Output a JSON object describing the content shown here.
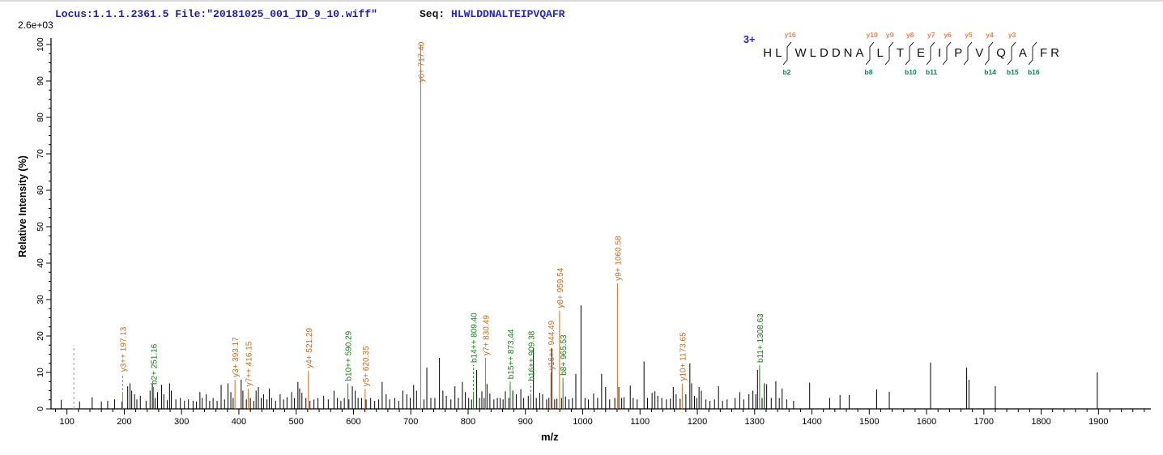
{
  "header": {
    "locus_file": "Locus:1.1.1.2361.5 File:\"20181025_001_ID_9_10.wiff\"",
    "seq_label": "Seq: ",
    "seq_value": "HLWLDDNALTEIPVQAFR"
  },
  "axes": {
    "y_top_label": "2.6e+03",
    "y_axis_title": "Relative  Intensity (%)",
    "x_axis_title": "m/z",
    "x_range": [
      75,
      1990
    ],
    "y_range": [
      0,
      100
    ],
    "x_major_tick_step": 100,
    "x_minor_tick_step": 20,
    "y_major_tick_step": 10,
    "y_minor_tick_step": 2.5,
    "x_tick_labels": [
      100,
      200,
      300,
      400,
      500,
      600,
      700,
      800,
      900,
      1000,
      1100,
      1200,
      1300,
      1400,
      1500,
      1600,
      1700,
      1800,
      1900
    ],
    "y_tick_labels": [
      0,
      10,
      20,
      30,
      40,
      50,
      60,
      70,
      80,
      90,
      100
    ]
  },
  "fragment_map": {
    "charge": "3+",
    "residues": [
      "H",
      "L",
      "W",
      "L",
      "D",
      "D",
      "N",
      "A",
      "L",
      "T",
      "E",
      "I",
      "P",
      "V",
      "Q",
      "A",
      "F",
      "R"
    ],
    "cleavages": [
      {
        "after": 2,
        "y": "y16",
        "b": "b2"
      },
      {
        "after": 8,
        "y": "y10",
        "b": "b8"
      },
      {
        "after": 9,
        "y": "y9",
        "b": null
      },
      {
        "after": 10,
        "y": "y8",
        "b": "b10"
      },
      {
        "after": 11,
        "y": "y7",
        "b": "b11"
      },
      {
        "after": 12,
        "y": "y6",
        "b": null
      },
      {
        "after": 13,
        "y": "y5",
        "b": null
      },
      {
        "after": 14,
        "y": "y4",
        "b": "b14"
      },
      {
        "after": 15,
        "y": "y3",
        "b": "b15"
      },
      {
        "after": 16,
        "y": null,
        "b": "b16"
      }
    ]
  },
  "colors": {
    "y_ion": "#d2691e",
    "b_ion": "#128412",
    "frag_y": "#f08254",
    "frag_b": "#0b8457",
    "peak": "#000000",
    "precursor": "#9a9a9a",
    "charge_blue": "#2424c8",
    "header_blue": "#1c1cb0",
    "seq_blue": "#2424d0"
  },
  "chart_data": {
    "type": "bar",
    "subtype": "ms2-centroid-stick-spectrum",
    "title": "",
    "xlabel": "m/z",
    "ylabel": "Relative  Intensity (%)",
    "xlim": [
      75,
      1990
    ],
    "ylim": [
      0,
      100
    ],
    "base_peak_intensity": "2.6e+03",
    "precursor_marker": {
      "mz": 112,
      "intensity": 17.5,
      "style": "dashed-gray"
    },
    "labeled_peaks": [
      {
        "ion": "y3++",
        "ion_type": "y",
        "label": "y3++ 197.13",
        "mz": 197.13,
        "intensity": 4,
        "label_start": 9.5,
        "leader": "dashed"
      },
      {
        "ion": "b2+",
        "ion_type": "b",
        "label": "b2+ 251.16",
        "mz": 251.16,
        "intensity": 5,
        "label_start": 6,
        "leader": "solid"
      },
      {
        "ion": "y3+",
        "ion_type": "y",
        "label": "y3+ 393.17",
        "mz": 393.17,
        "intensity": 7,
        "label_start": 8,
        "leader": "solid"
      },
      {
        "ion": "y7++",
        "ion_type": "y",
        "label": "y7++ 416.15",
        "mz": 416.15,
        "intensity": 4.5,
        "label_start": 5.5,
        "leader": "solid"
      },
      {
        "ion": "y4+",
        "ion_type": "y",
        "label": "y4+ 521.29",
        "mz": 521.29,
        "intensity": 9.5,
        "label_start": 10.5,
        "leader": "solid"
      },
      {
        "ion": "b10++",
        "ion_type": "b",
        "label": "b10++ 590.29",
        "mz": 590.29,
        "intensity": 6,
        "label_start": 7,
        "leader": "solid"
      },
      {
        "ion": "y5+",
        "ion_type": "y",
        "label": "y5+ 620.35",
        "mz": 620.35,
        "intensity": 4.5,
        "label_start": 5.5,
        "leader": "solid"
      },
      {
        "ion": "y6+",
        "ion_type": "y",
        "label": "y6+ 717.40",
        "mz": 717.4,
        "intensity": 100,
        "label_start": 89,
        "leader": "solid"
      },
      {
        "ion": "b14++",
        "ion_type": "b",
        "label": "b14++ 809.40",
        "mz": 809.4,
        "intensity": 4,
        "label_start": 12,
        "leader": "dashed"
      },
      {
        "ion": "y7+",
        "ion_type": "y",
        "label": "y7+ 830.49",
        "mz": 830.49,
        "intensity": 13,
        "label_start": 14,
        "leader": "solid"
      },
      {
        "ion": "b15++",
        "ion_type": "b",
        "label": "b15++ 873.44",
        "mz": 873.44,
        "intensity": 6.5,
        "label_start": 7.5,
        "leader": "solid"
      },
      {
        "ion": "b16++",
        "ion_type": "b",
        "label": "b16++ 909.38",
        "mz": 909.38,
        "intensity": 3.5,
        "label_start": 7,
        "leader": "dashed"
      },
      {
        "ion": "y16++",
        "ion_type": "y",
        "label": "y16++ 944.49",
        "mz": 944.49,
        "intensity": 9,
        "label_start": 10,
        "leader": "solid"
      },
      {
        "ion": "y8+",
        "ion_type": "y",
        "label": "y8+ 959.54",
        "mz": 959.54,
        "intensity": 26,
        "label_start": 27,
        "leader": "solid"
      },
      {
        "ion": "b8+",
        "ion_type": "b",
        "label": "b8+ 965.53",
        "mz": 965.53,
        "intensity": 7.5,
        "label_start": 8.5,
        "leader": "solid"
      },
      {
        "ion": "y9+",
        "ion_type": "y",
        "label": "y9+ 1060.58",
        "mz": 1060.58,
        "intensity": 33.5,
        "label_start": 34.5,
        "leader": "solid"
      },
      {
        "ion": "y10+",
        "ion_type": "y",
        "label": "y10+ 1173.65",
        "mz": 1173.65,
        "intensity": 6,
        "label_start": 7,
        "leader": "solid"
      },
      {
        "ion": "b11+",
        "ion_type": "b",
        "label": "b11+ 1308.63",
        "mz": 1308.63,
        "intensity": 11,
        "label_start": 12,
        "leader": "solid"
      }
    ],
    "background_peaks": [
      [
        90,
        2.5
      ],
      [
        122,
        2
      ],
      [
        144,
        3.2
      ],
      [
        160,
        2
      ],
      [
        171,
        2.2
      ],
      [
        183,
        2.6
      ],
      [
        196,
        2
      ],
      [
        206,
        6.2
      ],
      [
        210,
        7
      ],
      [
        213,
        5
      ],
      [
        218,
        4
      ],
      [
        222,
        2.6
      ],
      [
        228,
        3.6
      ],
      [
        238,
        2.2
      ],
      [
        245,
        5
      ],
      [
        249,
        7
      ],
      [
        254,
        3
      ],
      [
        258,
        4.6
      ],
      [
        265,
        6.6
      ],
      [
        269,
        4
      ],
      [
        275,
        2.4
      ],
      [
        279,
        7
      ],
      [
        282,
        5
      ],
      [
        290,
        2.6
      ],
      [
        298,
        3
      ],
      [
        305,
        2.2
      ],
      [
        312,
        2.6
      ],
      [
        320,
        2.2
      ],
      [
        326,
        2
      ],
      [
        332,
        4.6
      ],
      [
        336,
        3
      ],
      [
        343,
        4
      ],
      [
        349,
        2.2
      ],
      [
        355,
        3
      ],
      [
        362,
        2.2
      ],
      [
        369,
        6.6
      ],
      [
        375,
        2.6
      ],
      [
        381,
        7
      ],
      [
        386,
        4.6
      ],
      [
        390,
        3
      ],
      [
        404,
        8
      ],
      [
        407,
        5
      ],
      [
        413,
        2.6
      ],
      [
        420,
        3
      ],
      [
        426,
        2.2
      ],
      [
        430,
        5
      ],
      [
        434,
        6
      ],
      [
        439,
        3
      ],
      [
        443,
        4
      ],
      [
        449,
        2.6
      ],
      [
        453,
        5.6
      ],
      [
        457,
        3
      ],
      [
        464,
        2.2
      ],
      [
        472,
        4
      ],
      [
        478,
        2.6
      ],
      [
        484,
        3.2
      ],
      [
        492,
        4.6
      ],
      [
        497,
        3
      ],
      [
        503,
        7.4
      ],
      [
        506,
        5.6
      ],
      [
        510,
        4.4
      ],
      [
        517,
        3
      ],
      [
        524,
        2.2
      ],
      [
        531,
        2.6
      ],
      [
        538,
        3
      ],
      [
        548,
        3.6
      ],
      [
        556,
        2.6
      ],
      [
        566,
        5
      ],
      [
        572,
        3
      ],
      [
        578,
        2.2
      ],
      [
        584,
        3
      ],
      [
        592,
        2.6
      ],
      [
        598,
        6.2
      ],
      [
        603,
        5
      ],
      [
        608,
        3
      ],
      [
        614,
        3
      ],
      [
        622,
        2.6
      ],
      [
        630,
        3
      ],
      [
        637,
        2.2
      ],
      [
        644,
        2.6
      ],
      [
        650,
        7.4
      ],
      [
        657,
        4
      ],
      [
        663,
        2.6
      ],
      [
        672,
        3
      ],
      [
        679,
        2.2
      ],
      [
        686,
        5
      ],
      [
        693,
        4
      ],
      [
        699,
        3
      ],
      [
        705,
        6.6
      ],
      [
        710,
        5
      ],
      [
        723,
        2.6
      ],
      [
        728,
        11.3
      ],
      [
        735,
        3
      ],
      [
        742,
        3
      ],
      [
        750,
        14
      ],
      [
        756,
        5
      ],
      [
        762,
        3.6
      ],
      [
        770,
        2.6
      ],
      [
        777,
        6.2
      ],
      [
        783,
        3
      ],
      [
        790,
        7.4
      ],
      [
        795,
        4.6
      ],
      [
        801,
        3
      ],
      [
        806,
        2.6
      ],
      [
        815,
        10.7
      ],
      [
        820,
        3
      ],
      [
        824,
        4.8
      ],
      [
        828,
        3
      ],
      [
        833,
        6.8
      ],
      [
        838,
        4.2
      ],
      [
        845,
        2.6
      ],
      [
        851,
        3
      ],
      [
        856,
        3
      ],
      [
        861,
        2.6
      ],
      [
        865,
        4.8
      ],
      [
        871,
        3
      ],
      [
        878,
        5
      ],
      [
        884,
        4
      ],
      [
        892,
        5.4
      ],
      [
        897,
        3
      ],
      [
        905,
        3.6
      ],
      [
        914,
        16.6
      ],
      [
        919,
        3
      ],
      [
        925,
        4.4
      ],
      [
        930,
        4
      ],
      [
        937,
        2.6
      ],
      [
        941,
        3
      ],
      [
        946,
        16.6
      ],
      [
        951,
        2.6
      ],
      [
        955,
        2.8
      ],
      [
        963,
        3
      ],
      [
        970,
        3.4
      ],
      [
        976,
        2.6
      ],
      [
        982,
        3
      ],
      [
        988,
        9.6
      ],
      [
        997,
        28.4
      ],
      [
        1004,
        3
      ],
      [
        1010,
        2.6
      ],
      [
        1019,
        4.2
      ],
      [
        1026,
        3
      ],
      [
        1033,
        9.6
      ],
      [
        1040,
        6
      ],
      [
        1047,
        2.6
      ],
      [
        1056,
        3
      ],
      [
        1063,
        6
      ],
      [
        1068,
        3
      ],
      [
        1072,
        3.2
      ],
      [
        1083,
        6.4
      ],
      [
        1088,
        3
      ],
      [
        1095,
        2.6
      ],
      [
        1107,
        13
      ],
      [
        1113,
        3
      ],
      [
        1121,
        4.4
      ],
      [
        1126,
        4.8
      ],
      [
        1131,
        3.6
      ],
      [
        1138,
        3
      ],
      [
        1146,
        2.6
      ],
      [
        1153,
        2.8
      ],
      [
        1158,
        6
      ],
      [
        1163,
        4
      ],
      [
        1170,
        2.8
      ],
      [
        1180,
        4
      ],
      [
        1187,
        12.5
      ],
      [
        1190,
        7
      ],
      [
        1195,
        3.6
      ],
      [
        1199,
        3
      ],
      [
        1203,
        6
      ],
      [
        1207,
        5
      ],
      [
        1215,
        2.6
      ],
      [
        1222,
        2.2
      ],
      [
        1230,
        2.6
      ],
      [
        1237,
        6.2
      ],
      [
        1244,
        2.2
      ],
      [
        1252,
        2.6
      ],
      [
        1266,
        3
      ],
      [
        1274,
        4.6
      ],
      [
        1281,
        2.6
      ],
      [
        1290,
        4
      ],
      [
        1297,
        5
      ],
      [
        1302,
        4
      ],
      [
        1305,
        10.7
      ],
      [
        1313,
        3
      ],
      [
        1317,
        7
      ],
      [
        1321,
        6.8
      ],
      [
        1329,
        3
      ],
      [
        1337,
        7.6
      ],
      [
        1343,
        3
      ],
      [
        1348,
        5.6
      ],
      [
        1356,
        2.6
      ],
      [
        1368,
        2.2
      ],
      [
        1396,
        7.2
      ],
      [
        1431,
        3
      ],
      [
        1449,
        3.8
      ],
      [
        1465,
        3.8
      ],
      [
        1513,
        5.3
      ],
      [
        1535,
        4.7
      ],
      [
        1607,
        12.7
      ],
      [
        1670,
        11.3
      ],
      [
        1674,
        8
      ],
      [
        1720,
        6.2
      ],
      [
        1898,
        10
      ]
    ]
  }
}
